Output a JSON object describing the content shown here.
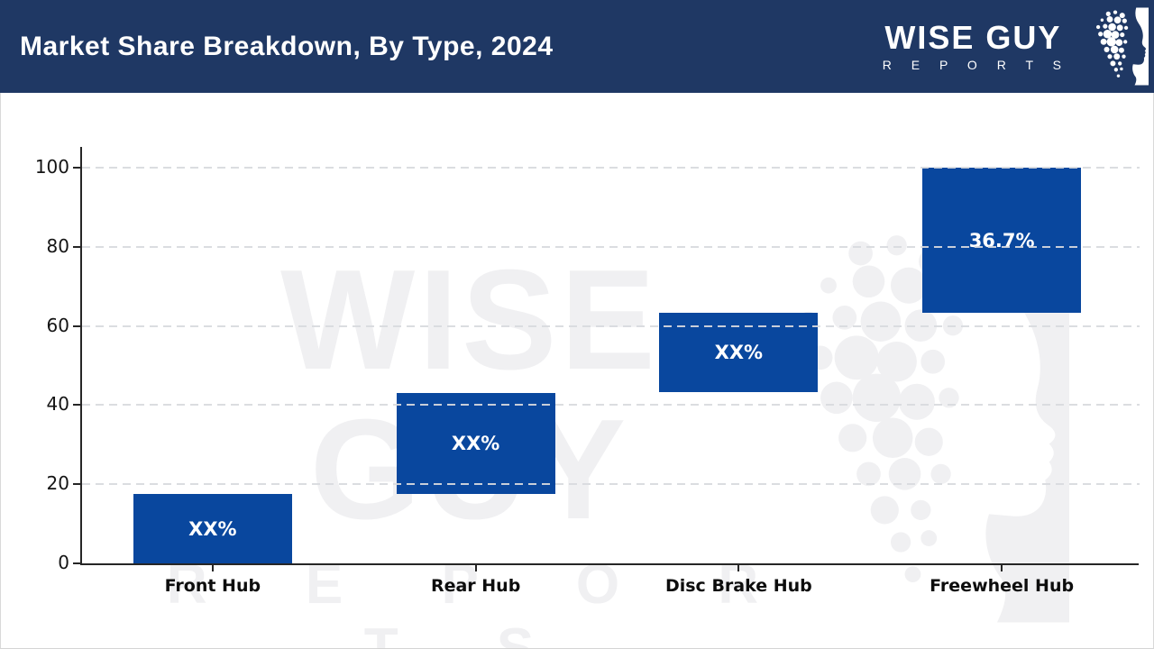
{
  "header": {
    "title": "Market Share Breakdown, By Type, 2024",
    "bg_color": "#1f3864",
    "logo": {
      "line1": "WISE GUY",
      "line2": "R E P O R T S",
      "icon": "dotted-head-profile"
    }
  },
  "watermark": {
    "line1": "WISE GUY",
    "line2": "R E P O R T S",
    "icon": "dotted-head-profile"
  },
  "chart_data": {
    "type": "bar",
    "subtype": "waterfall",
    "title": "Market Share Breakdown, By Type, 2024",
    "categories": [
      "Front Hub",
      "Rear Hub",
      "Disc Brake Hub",
      "Freewheel Hub"
    ],
    "segments": [
      {
        "category": "Front Hub",
        "start": 0,
        "end": 17.5,
        "label": "XX%"
      },
      {
        "category": "Rear Hub",
        "start": 17.5,
        "end": 43.0,
        "label": "XX%"
      },
      {
        "category": "Disc Brake Hub",
        "start": 43.3,
        "end": 63.3,
        "label": "XX%"
      },
      {
        "category": "Freewheel Hub",
        "start": 63.3,
        "end": 100,
        "label": "36.7%"
      }
    ],
    "ylim": [
      0,
      100
    ],
    "yticks": [
      0,
      20,
      40,
      60,
      80,
      100
    ],
    "xlabel": "",
    "ylabel": "",
    "grid": "horizontal-dashed",
    "legend": "none",
    "bar_color": "#09479e",
    "bar_label_color": "#ffffff"
  }
}
